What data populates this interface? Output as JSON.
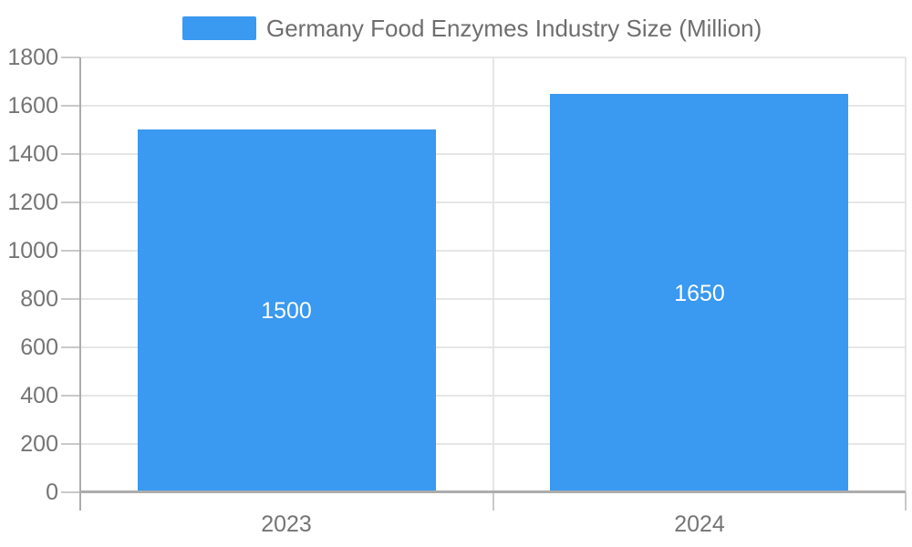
{
  "chart_data": {
    "type": "bar",
    "title": "Germany Food Enzymes Industry Size (Million)",
    "categories": [
      "2023",
      "2024"
    ],
    "values": [
      1500,
      1650
    ],
    "ylim": [
      0,
      1800
    ],
    "yticks": [
      0,
      200,
      400,
      600,
      800,
      1000,
      1200,
      1400,
      1600,
      1800
    ],
    "legend_position": "top",
    "grid": true,
    "value_labels_shown": true,
    "colors": {
      "bar": "#3A99F0",
      "value_label": "#ffffff",
      "tick_label": "#757575",
      "title": "#6e6e6e",
      "gridline": "#e6e6e6",
      "axis": "#acacac",
      "tick": "#c9c9c9"
    }
  }
}
